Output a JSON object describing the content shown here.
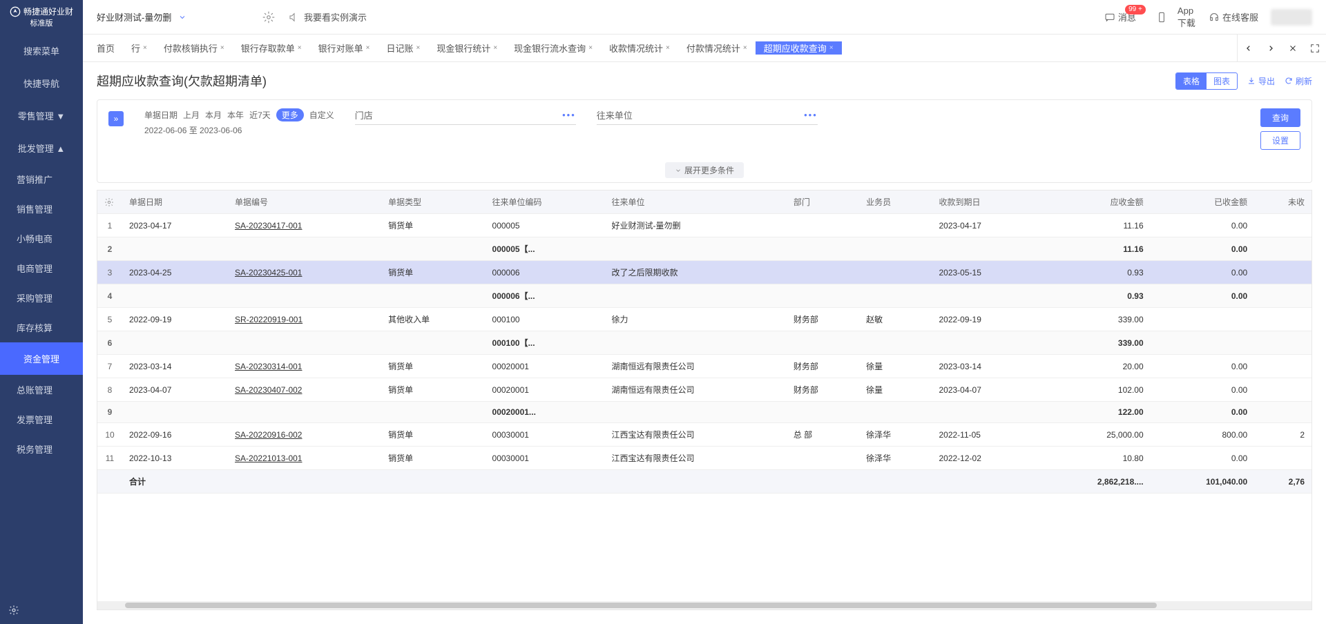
{
  "brand": {
    "name": "畅捷通好业财",
    "edition": "标准版"
  },
  "org": {
    "name": "好业财测试-量勿删"
  },
  "demo": {
    "label": "我要看实例演示"
  },
  "topActions": {
    "message": "消息",
    "msgBadge": "99 +",
    "appDownload": "App下载",
    "service": "在线客服"
  },
  "sidebar": {
    "items": [
      {
        "label": "搜索菜单"
      },
      {
        "label": "快捷导航"
      },
      {
        "label": "零售管理",
        "arrow": "▼"
      },
      {
        "label": "批发管理",
        "arrow": "▲",
        "children": [
          {
            "label": "营销推广"
          },
          {
            "label": "销售管理"
          },
          {
            "label": "小畅电商"
          },
          {
            "label": "电商管理"
          },
          {
            "label": "采购管理"
          },
          {
            "label": "库存核算"
          },
          {
            "label": "资金管理",
            "active": true
          },
          {
            "label": "总账管理"
          },
          {
            "label": "发票管理"
          },
          {
            "label": "税务管理"
          }
        ]
      }
    ]
  },
  "tabs": [
    {
      "label": "首页",
      "closable": false
    },
    {
      "label": "行",
      "closable": true
    },
    {
      "label": "付款核销执行",
      "closable": true
    },
    {
      "label": "银行存取款单",
      "closable": true
    },
    {
      "label": "银行对账单",
      "closable": true
    },
    {
      "label": "日记账",
      "closable": true
    },
    {
      "label": "现金银行统计",
      "closable": true
    },
    {
      "label": "现金银行流水查询",
      "closable": true
    },
    {
      "label": "收款情况统计",
      "closable": true
    },
    {
      "label": "付款情况统计",
      "closable": true
    },
    {
      "label": "超期应收款查询",
      "closable": true,
      "active": true
    }
  ],
  "page": {
    "title": "超期应收款查询(欠款超期清单)"
  },
  "viewMode": {
    "table": "表格",
    "chart": "图表"
  },
  "actions": {
    "export": "导出",
    "refresh": "刷新",
    "query": "查询",
    "settings": "设置"
  },
  "filters": {
    "dateLabel": "单据日期",
    "chips": {
      "lastMonth": "上月",
      "thisMonth": "本月",
      "thisYear": "本年",
      "last7": "近7天",
      "more": "更多",
      "custom": "自定义"
    },
    "dateRange": "2022-06-06 至 2023-06-06",
    "storeLabel": "门店",
    "partnerLabel": "往来单位",
    "expand": "展开更多条件"
  },
  "table": {
    "columns": {
      "idx": "",
      "date": "单据日期",
      "docNo": "单据编号",
      "docType": "单据类型",
      "partnerCode": "往来单位编码",
      "partner": "往来单位",
      "dept": "部门",
      "salesman": "业务员",
      "dueDate": "收款到期日",
      "receivable": "应收金额",
      "received": "已收金额",
      "unreceived": "未收"
    },
    "rows": [
      {
        "idx": "1",
        "date": "2023-04-17",
        "docNo": "SA-20230417-001",
        "docType": "销货单",
        "partnerCode": "000005",
        "partner": "好业财测试-量勿删",
        "dept": "",
        "salesman": "",
        "dueDate": "2023-04-17",
        "receivable": "11.16",
        "received": "0.00"
      },
      {
        "idx": "2",
        "subtotal": true,
        "partnerCode": "000005【...",
        "receivable": "11.16",
        "received": "0.00"
      },
      {
        "idx": "3",
        "highlight": true,
        "date": "2023-04-25",
        "docNo": "SA-20230425-001",
        "docType": "销货单",
        "partnerCode": "000006",
        "partner": "改了之后限期收款",
        "dueDate": "2023-05-15",
        "receivable": "0.93",
        "received": "0.00"
      },
      {
        "idx": "4",
        "subtotal": true,
        "partnerCode": "000006【...",
        "receivable": "0.93",
        "received": "0.00"
      },
      {
        "idx": "5",
        "date": "2022-09-19",
        "docNo": "SR-20220919-001",
        "docType": "其他收入单",
        "partnerCode": "000100",
        "partner": "徐力",
        "dept": "财务部",
        "salesman": "赵敏",
        "dueDate": "2022-09-19",
        "receivable": "339.00",
        "received": ""
      },
      {
        "idx": "6",
        "subtotal": true,
        "partnerCode": "000100【...",
        "receivable": "339.00",
        "received": ""
      },
      {
        "idx": "7",
        "date": "2023-03-14",
        "docNo": "SA-20230314-001",
        "docType": "销货单",
        "partnerCode": "00020001",
        "partner": "湖南恒远有限责任公司",
        "dept": "财务部",
        "salesman": "徐量",
        "dueDate": "2023-03-14",
        "receivable": "20.00",
        "received": "0.00"
      },
      {
        "idx": "8",
        "date": "2023-04-07",
        "docNo": "SA-20230407-002",
        "docType": "销货单",
        "partnerCode": "00020001",
        "partner": "湖南恒远有限责任公司",
        "dept": "财务部",
        "salesman": "徐量",
        "dueDate": "2023-04-07",
        "receivable": "102.00",
        "received": "0.00"
      },
      {
        "idx": "9",
        "subtotal": true,
        "partnerCode": "00020001...",
        "receivable": "122.00",
        "received": "0.00"
      },
      {
        "idx": "10",
        "date": "2022-09-16",
        "docNo": "SA-20220916-002",
        "docType": "销货单",
        "partnerCode": "00030001",
        "partner": "江西宝达有限责任公司",
        "dept": "总 部",
        "salesman": "徐泽华",
        "dueDate": "2022-11-05",
        "receivable": "25,000.00",
        "received": "800.00",
        "unreceived": "2"
      },
      {
        "idx": "11",
        "date": "2022-10-13",
        "docNo": "SA-20221013-001",
        "docType": "销货单",
        "partnerCode": "00030001",
        "partner": "江西宝达有限责任公司",
        "dept": "",
        "salesman": "徐泽华",
        "dueDate": "2022-12-02",
        "receivable": "10.80",
        "received": "0.00"
      }
    ],
    "total": {
      "label": "合计",
      "receivable": "2,862,218....",
      "received": "101,040.00",
      "unreceived": "2,76"
    }
  }
}
